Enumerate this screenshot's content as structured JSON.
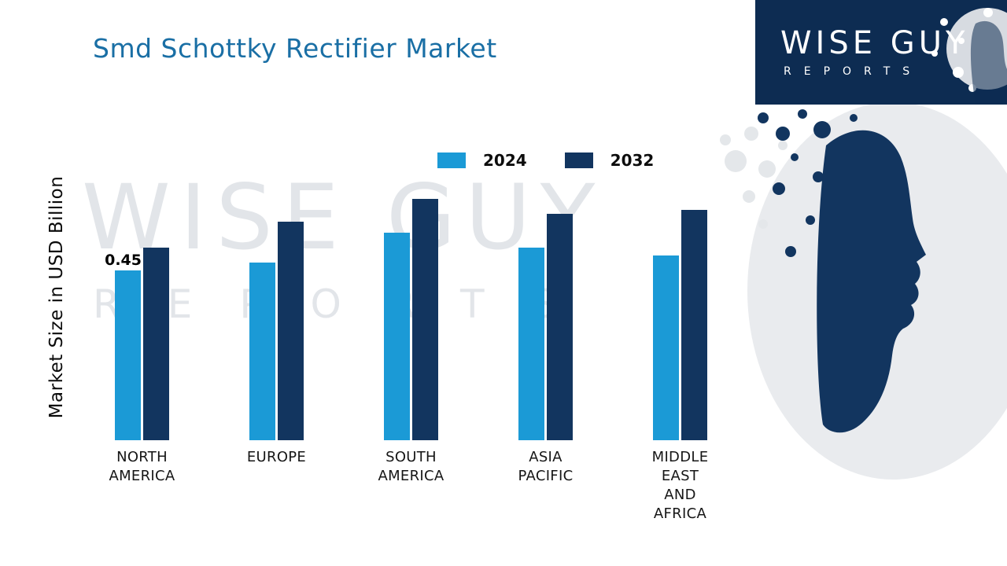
{
  "title": "Smd Schottky Rectifier Market",
  "y_axis_label": "Market Size in USD Billion",
  "watermark": {
    "line1": "WISE GUY",
    "line2": "REPORTS"
  },
  "logo": {
    "line1": "WISE GUY",
    "line2": "REPORTS"
  },
  "colors": {
    "title": "#1a6fa5",
    "bar_2024": "#1b9ad6",
    "bar_2032": "#12355f",
    "logo_background": "#0d2c52",
    "watermark": "#e2e5e9",
    "face_gray": "#e9ebee"
  },
  "legend": {
    "items": [
      {
        "label": "2024",
        "color": "#1b9ad6"
      },
      {
        "label": "2032",
        "color": "#12355f"
      }
    ]
  },
  "chart_data": {
    "type": "bar",
    "title": "Smd Schottky Rectifier Market",
    "ylabel": "Market Size in USD Billion",
    "xlabel": "",
    "ylim": [
      0,
      0.75
    ],
    "grid": false,
    "legend_position": "top",
    "categories": [
      "NORTH\nAMERICA",
      "EUROPE",
      "SOUTH\nAMERICA",
      "ASIA\nPACIFIC",
      "MIDDLE\nEAST\nAND\nAFRICA"
    ],
    "series": [
      {
        "name": "2024",
        "color": "#1b9ad6",
        "values": [
          0.45,
          0.47,
          0.55,
          0.51,
          0.49
        ]
      },
      {
        "name": "2032",
        "color": "#12355f",
        "values": [
          0.51,
          0.58,
          0.64,
          0.6,
          0.61
        ]
      }
    ],
    "bar_labels": [
      {
        "series": "2024",
        "category_index": 0,
        "text": "0.45"
      }
    ]
  }
}
